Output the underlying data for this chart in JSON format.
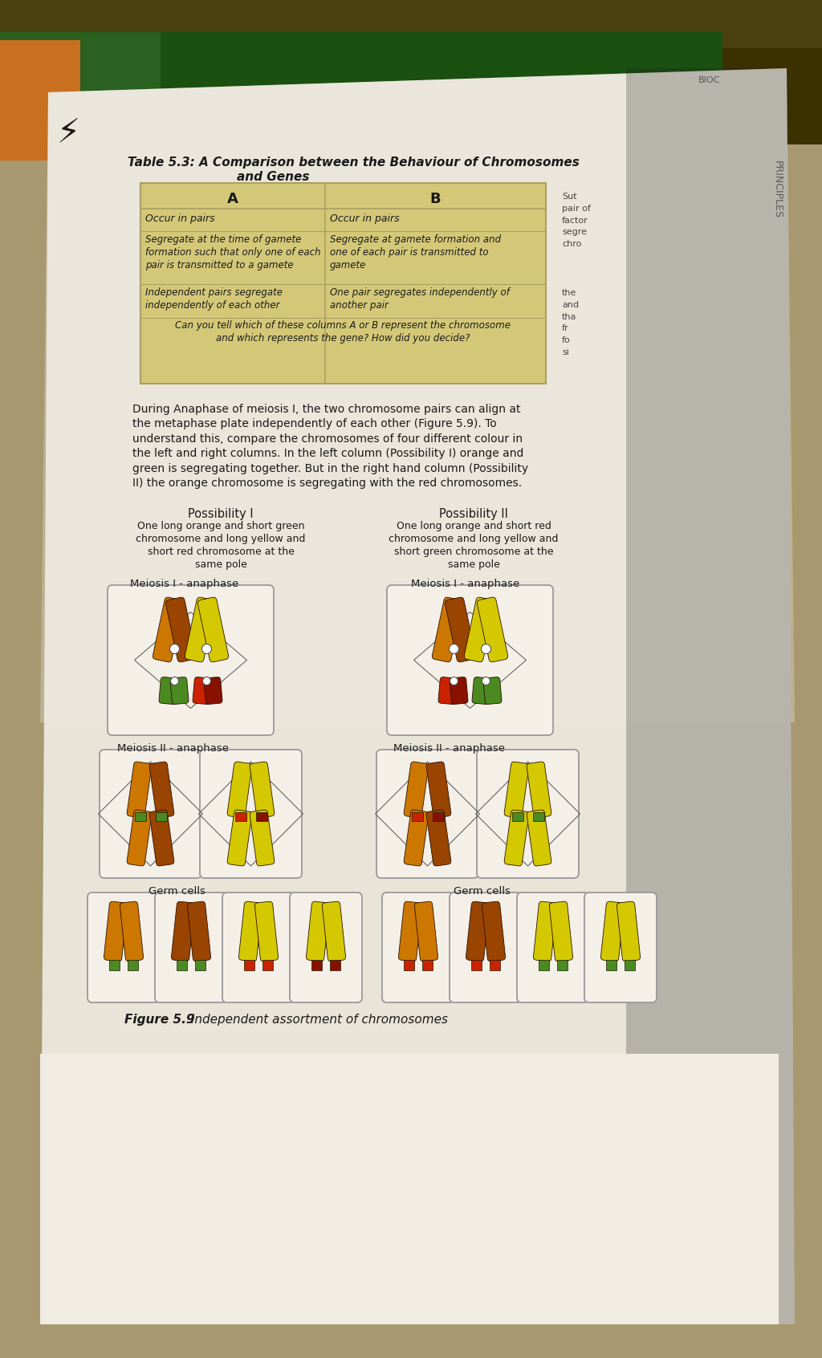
{
  "title_line1": "Table 5.3: A Comparison between the Behaviour of Chromosomes",
  "title_line2": "and Genes",
  "col_A_header": "A",
  "col_B_header": "B",
  "row1_A": "Occur in pairs",
  "row1_B": "Occur in pairs",
  "row2_A": "Segregate at the time of gamete\nformation such that only one of each\npair is transmitted to a gamete",
  "row2_B": "Segregate at gamete formation and\none of each pair is transmitted to\ngamete",
  "row3_A": "Independent pairs segregate\nindependently of each other",
  "row3_B": "One pair segregates independently of\nanother pair",
  "question": "Can you tell which of these columns A or B represent the chromosome\nand which represents the gene? How did you decide?",
  "paragraph": "During Anaphase of meiosis I, the two chromosome pairs can align at\nthe metaphase plate independently of each other (Figure 5.9). To\nunderstand this, compare the chromosomes of four different colour in\nthe left and right columns. In the left column (Possibility I) orange and\ngreen is segregating together. But in the right hand column (Possibility\nII) the orange chromosome is segregating with the red chromosomes.",
  "poss1_title": "Possibility I",
  "poss1_desc": "One long orange and short green\nchromosome and long yellow and\nshort red chromosome at the\nsame pole",
  "poss2_title": "Possibility II",
  "poss2_desc": "One long orange and short red\nchromosome and long yellow and\nshort green chromosome at the\nsame pole",
  "meiosis1_label": "Meiosis I - anaphase",
  "meiosis2_label": "Meiosis II - anaphase",
  "germ_label": "Germ cells",
  "figure_caption_bold": "Figure 5.9",
  "figure_caption_rest": " Independent assortment of chromosomes",
  "table_bg": "#d4c878",
  "page_bg_top": "#b8b090",
  "page_bg_mid": "#d8d4c0",
  "page_bg_bottom": "#e8e4d8",
  "bg_dark": "#2a2000",
  "orange": "#cc7700",
  "dark_orange": "#994400",
  "yellow": "#d4c800",
  "green": "#4a8a20",
  "red": "#cc2200",
  "dark_red": "#881100"
}
